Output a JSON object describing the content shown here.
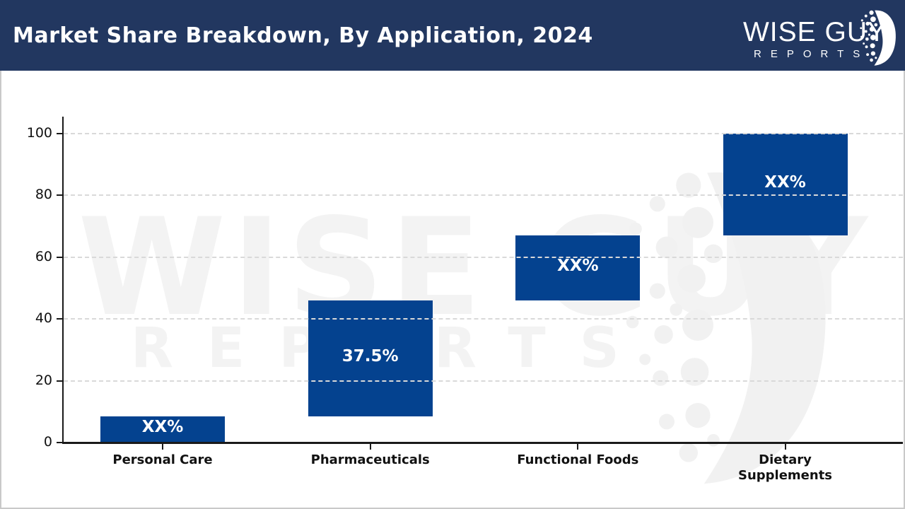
{
  "header": {
    "title": "Market Share Breakdown, By Application, 2024",
    "logo": {
      "line1": "WISE GUY",
      "line2": "REPORTS"
    }
  },
  "watermark": {
    "line1": "WISE GUY",
    "line2": "REPORTS"
  },
  "colors": {
    "header_bg": "#223760",
    "bar": "#04428f",
    "bar_label_text": "#ffffff",
    "gridline": "#d9d9d9",
    "axis": "#1a1a1a",
    "tick_label": "#111111",
    "watermark": "#f3f3f3",
    "edge_border": "#c9c9c9"
  },
  "chart_data": {
    "type": "bar",
    "subtype": "floating-segment-waterfall",
    "title": "Market Share Breakdown, By Application, 2024",
    "categories": [
      "Personal Care",
      "Pharmaceuticals",
      "Functional Foods",
      "Dietary Supplements"
    ],
    "category_label_lines": [
      [
        "Personal Care"
      ],
      [
        "Pharmaceuticals"
      ],
      [
        "Functional Foods"
      ],
      [
        "Dietary",
        "Supplements"
      ]
    ],
    "segments": [
      {
        "category": "Personal Care",
        "start": 0,
        "end": 8.5,
        "value": 8.5,
        "label": "XX%"
      },
      {
        "category": "Pharmaceuticals",
        "start": 8.5,
        "end": 46,
        "value": 37.5,
        "label": "37.5%"
      },
      {
        "category": "Functional Foods",
        "start": 46,
        "end": 67,
        "value": 21,
        "label": "XX%"
      },
      {
        "category": "Dietary Supplements",
        "start": 67,
        "end": 100,
        "value": 33,
        "label": "XX%"
      }
    ],
    "xlabel": "",
    "ylabel": "",
    "ylim": [
      0,
      105
    ],
    "yticks": [
      0,
      20,
      40,
      60,
      80,
      100
    ],
    "grid": "horizontal-dashed",
    "gridlines_over_bars": true,
    "legend": null
  }
}
